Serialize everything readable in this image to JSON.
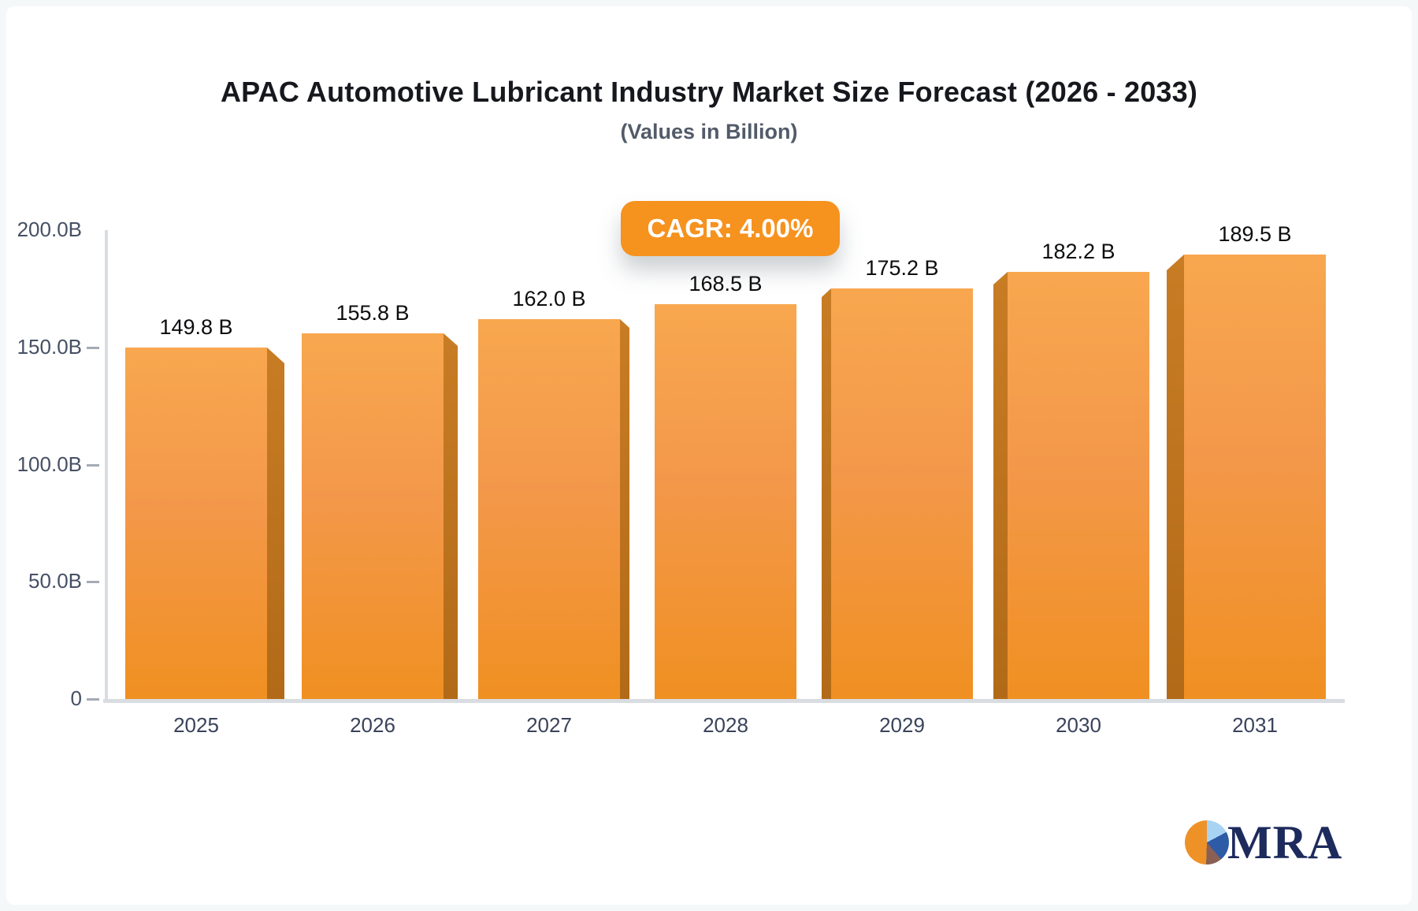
{
  "header": {
    "title": "APAC Automotive Lubricant Industry Market Size Forecast (2026 - 2033)",
    "subtitle": "(Values in Billion)"
  },
  "cagr_badge": {
    "label": "CAGR: 4.00%",
    "background": "#f6921e",
    "text_color": "#ffffff"
  },
  "chart_data": {
    "type": "bar",
    "title": "APAC Automotive Lubricant Industry Market Size Forecast (2026 - 2033)",
    "subtitle": "(Values in Billion)",
    "categories": [
      "2025",
      "2026",
      "2027",
      "2028",
      "2029",
      "2030",
      "2031"
    ],
    "values": [
      149.8,
      155.8,
      162.0,
      168.5,
      175.2,
      182.2,
      189.5
    ],
    "value_labels": [
      "149.8 B",
      "155.8 B",
      "162.0 B",
      "168.5 B",
      "175.2 B",
      "182.2 B",
      "189.5 B"
    ],
    "xlabel": "",
    "ylabel": "",
    "ylim": [
      0,
      200
    ],
    "y_ticks": [
      {
        "label": "200.0B",
        "value": 200
      },
      {
        "label": "150.0B",
        "value": 150
      },
      {
        "label": "100.0B",
        "value": 100
      },
      {
        "label": "50.0B",
        "value": 50
      },
      {
        "label": "0",
        "value": 0
      }
    ],
    "grid": false,
    "legend": false,
    "bar_color_top": "#f8a74f",
    "bar_color_bottom": "#f09022",
    "bar_side_color": "#b26a18",
    "style_note": "3D beveled bars; bevel faces outward from center bar"
  },
  "logo": {
    "text": "MRA",
    "navy": "#1d2a5c",
    "pie_orange": "#ee9227",
    "pie_lightblue": "#a9d3f2",
    "pie_blue": "#2d5ba6",
    "pie_brown": "#8a6054"
  }
}
